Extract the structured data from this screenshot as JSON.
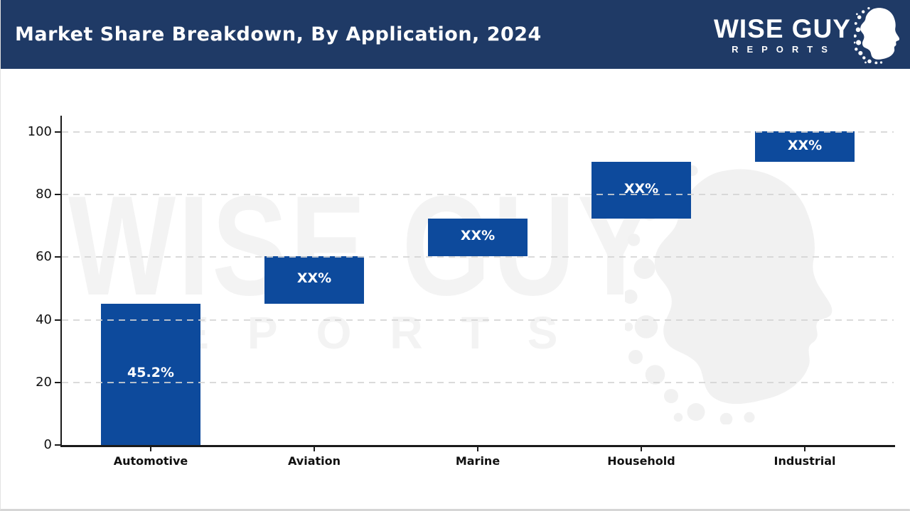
{
  "header": {
    "title": "Market Share Breakdown, By Application, 2024",
    "bg_color": "#1f3a66",
    "text_color": "#ffffff",
    "logo": {
      "line1": "WISE GUY",
      "line2": "REPORTS"
    }
  },
  "watermark": {
    "line1": "WISE GUY",
    "line2": "REPORTS",
    "color": "#f3f3f3"
  },
  "chart_data": {
    "type": "bar",
    "subtype": "waterfall",
    "title": "Market Share Breakdown, By Application, 2024",
    "categories": [
      "Automotive",
      "Aviation",
      "Marine",
      "Household",
      "Industrial"
    ],
    "segments": [
      {
        "category": "Automotive",
        "start": 0,
        "end": 45.2,
        "label": "45.2%"
      },
      {
        "category": "Aviation",
        "start": 45.2,
        "end": 60.4,
        "label": "XX%"
      },
      {
        "category": "Marine",
        "start": 60.4,
        "end": 72.4,
        "label": "XX%"
      },
      {
        "category": "Household",
        "start": 72.4,
        "end": 90.4,
        "label": "XX%"
      },
      {
        "category": "Industrial",
        "start": 90.4,
        "end": 100.2,
        "label": "XX%"
      }
    ],
    "y_ticks": [
      0,
      20,
      40,
      60,
      80,
      100
    ],
    "ylim": [
      0,
      105
    ],
    "xlabel": "",
    "ylabel": "",
    "grid": "horizontal-dashed",
    "legend": "none",
    "bar_color": "#0d4a9c",
    "bar_label_color": "#ffffff",
    "axis_color": "#1a1a1a",
    "grid_color": "#d4d4d4"
  }
}
